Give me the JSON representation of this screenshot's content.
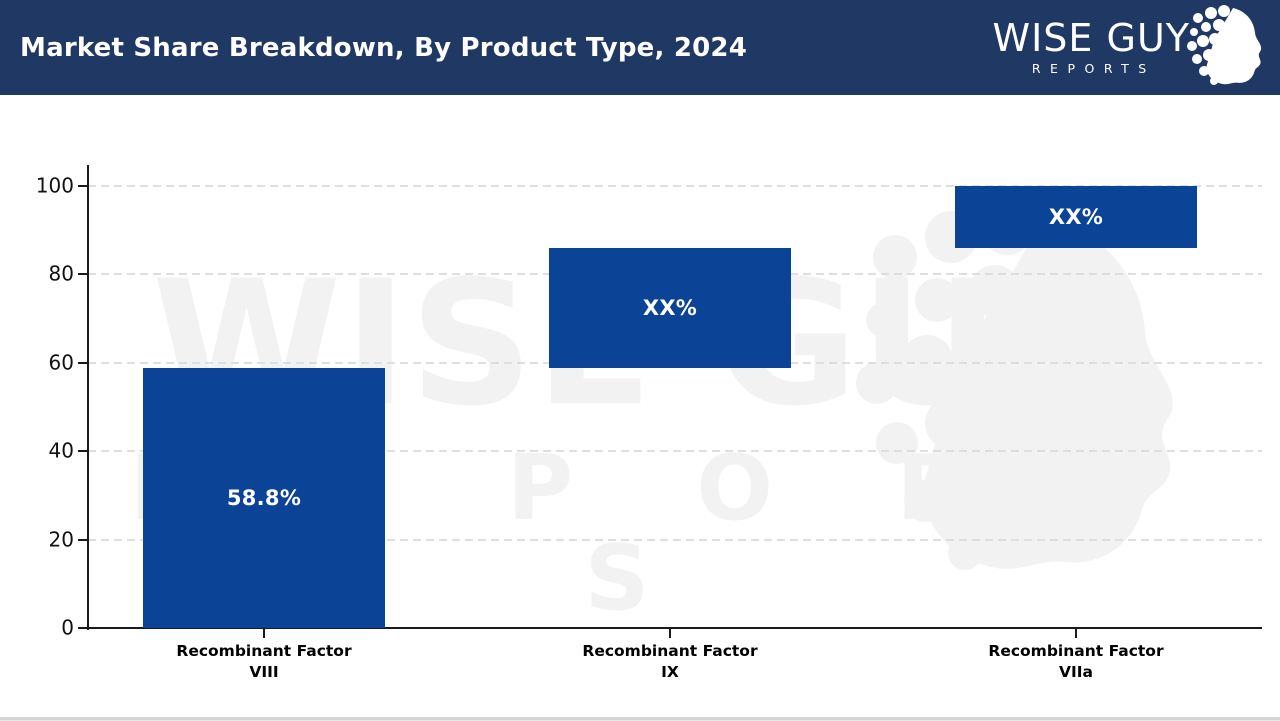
{
  "theme": {
    "header_bg": "#1f3864",
    "bar_color": "#0b4397",
    "watermark_color": "#f2f2f2",
    "axis_color": "#1a1a1a",
    "grid_color": "#dedede",
    "footer_line_color": "#d4d4d4"
  },
  "header": {
    "title": "Market Share Breakdown, By Product Type, 2024",
    "logo_line1": "WISE GUY",
    "logo_line2": "REPORTS"
  },
  "watermark": {
    "line1": "WISE GUY",
    "line2": "R E P O R T S"
  },
  "chart_data": {
    "type": "bar",
    "subtype": "waterfall-floating-segments",
    "title": "Market Share Breakdown, By Product Type, 2024",
    "xlabel": "",
    "ylabel": "",
    "ylim": [
      0,
      100
    ],
    "yticks": [
      0,
      20,
      40,
      60,
      80,
      100
    ],
    "grid": "horizontal-dashed",
    "legend": "none",
    "bar_color": "#0b4397",
    "categories": [
      [
        "Recombinant Factor",
        "VIII"
      ],
      [
        "Recombinant Factor",
        "IX"
      ],
      [
        "Recombinant Factor",
        "VIIa"
      ]
    ],
    "bars": [
      {
        "category": "Recombinant Factor VIII",
        "start": 0,
        "end": 58.8,
        "label": "58.8%"
      },
      {
        "category": "Recombinant Factor IX",
        "start": 58.8,
        "end": 86,
        "label": "XX%"
      },
      {
        "category": "Recombinant Factor VIIa",
        "start": 86,
        "end": 100,
        "label": "XX%"
      }
    ]
  }
}
